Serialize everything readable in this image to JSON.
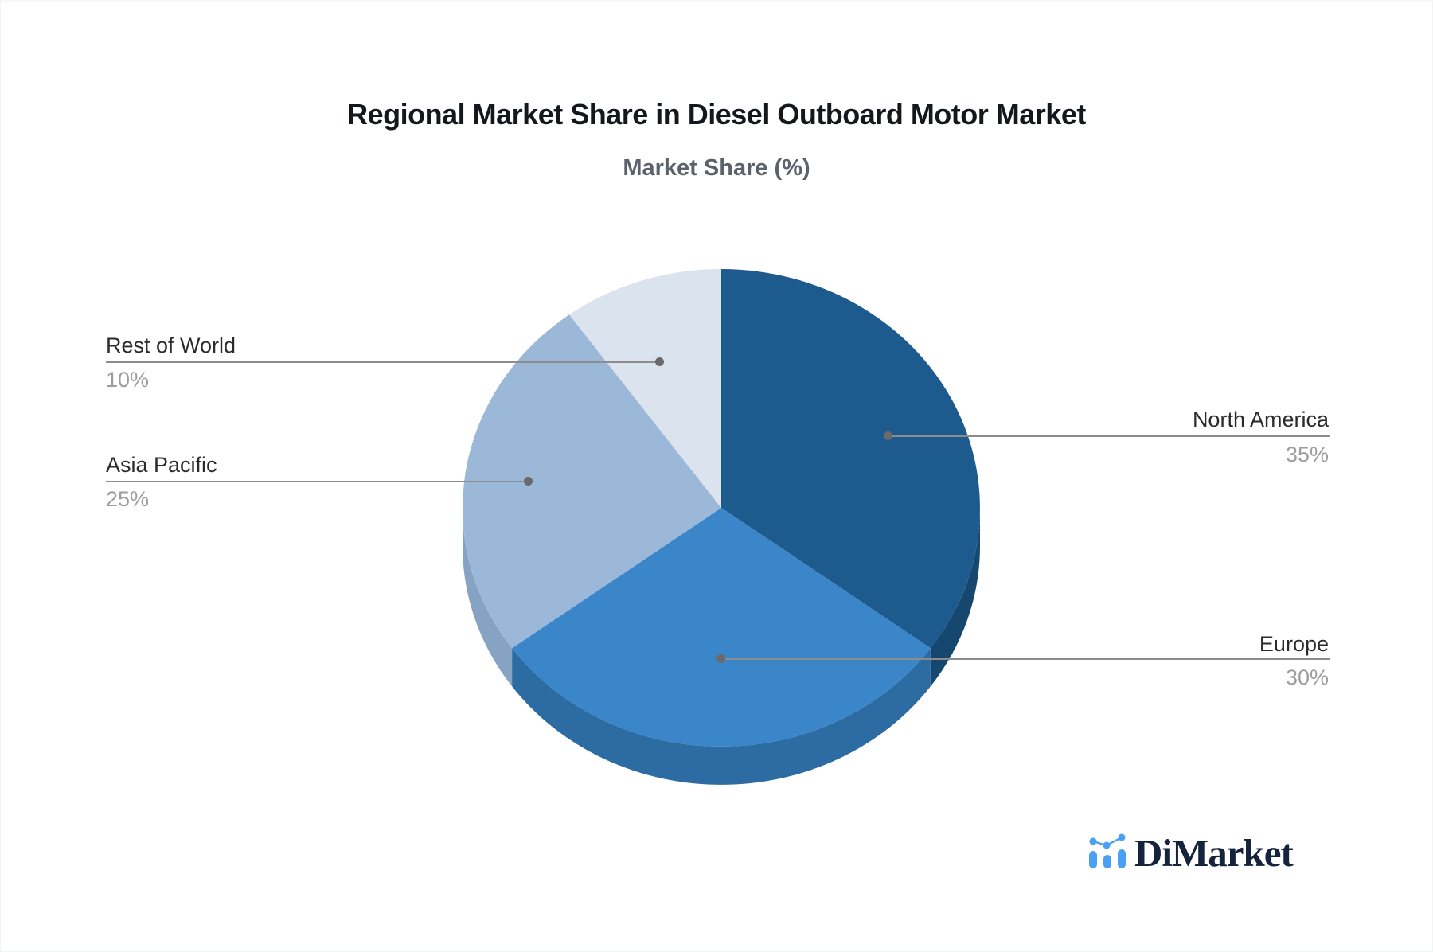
{
  "header": {
    "title": "Regional Market Share in Diesel Outboard Motor Market",
    "subtitle": "Market Share (%)"
  },
  "chart_data": {
    "type": "pie",
    "style": "3d",
    "title": "Regional Market Share in Diesel Outboard Motor Market",
    "subtitle": "Market Share (%)",
    "unit": "%",
    "categories": [
      "North America",
      "Europe",
      "Asia Pacific",
      "Rest of World"
    ],
    "values": [
      35,
      30,
      25,
      10
    ],
    "labels": [
      "35%",
      "30%",
      "25%",
      "10%"
    ],
    "colors": [
      "#1d5b8f",
      "#3a86c9",
      "#9cb8d9",
      "#dbe3ef"
    ],
    "side_colors": [
      "#15476f",
      "#2d6ba3",
      "#86a3c3",
      "#c9d4e2"
    ],
    "start_angle_deg": 0,
    "direction": "clockwise",
    "legend": false,
    "label_style": "callout-lines-with-dots"
  },
  "branding": {
    "logo_text": "DiMarket",
    "logo_icon": "bar-line-chart-icon",
    "logo_text_color": "#16233c",
    "logo_icon_color": "#4aa0f2"
  },
  "palette": {
    "leader_line": "#8c8c8c",
    "leader_dot": "#6a6a6a",
    "label_text": "#2b2b2b",
    "value_text": "#9d9d9d",
    "title_text": "#14181d",
    "subtitle_text": "#5c626b",
    "background": "#ffffff"
  }
}
